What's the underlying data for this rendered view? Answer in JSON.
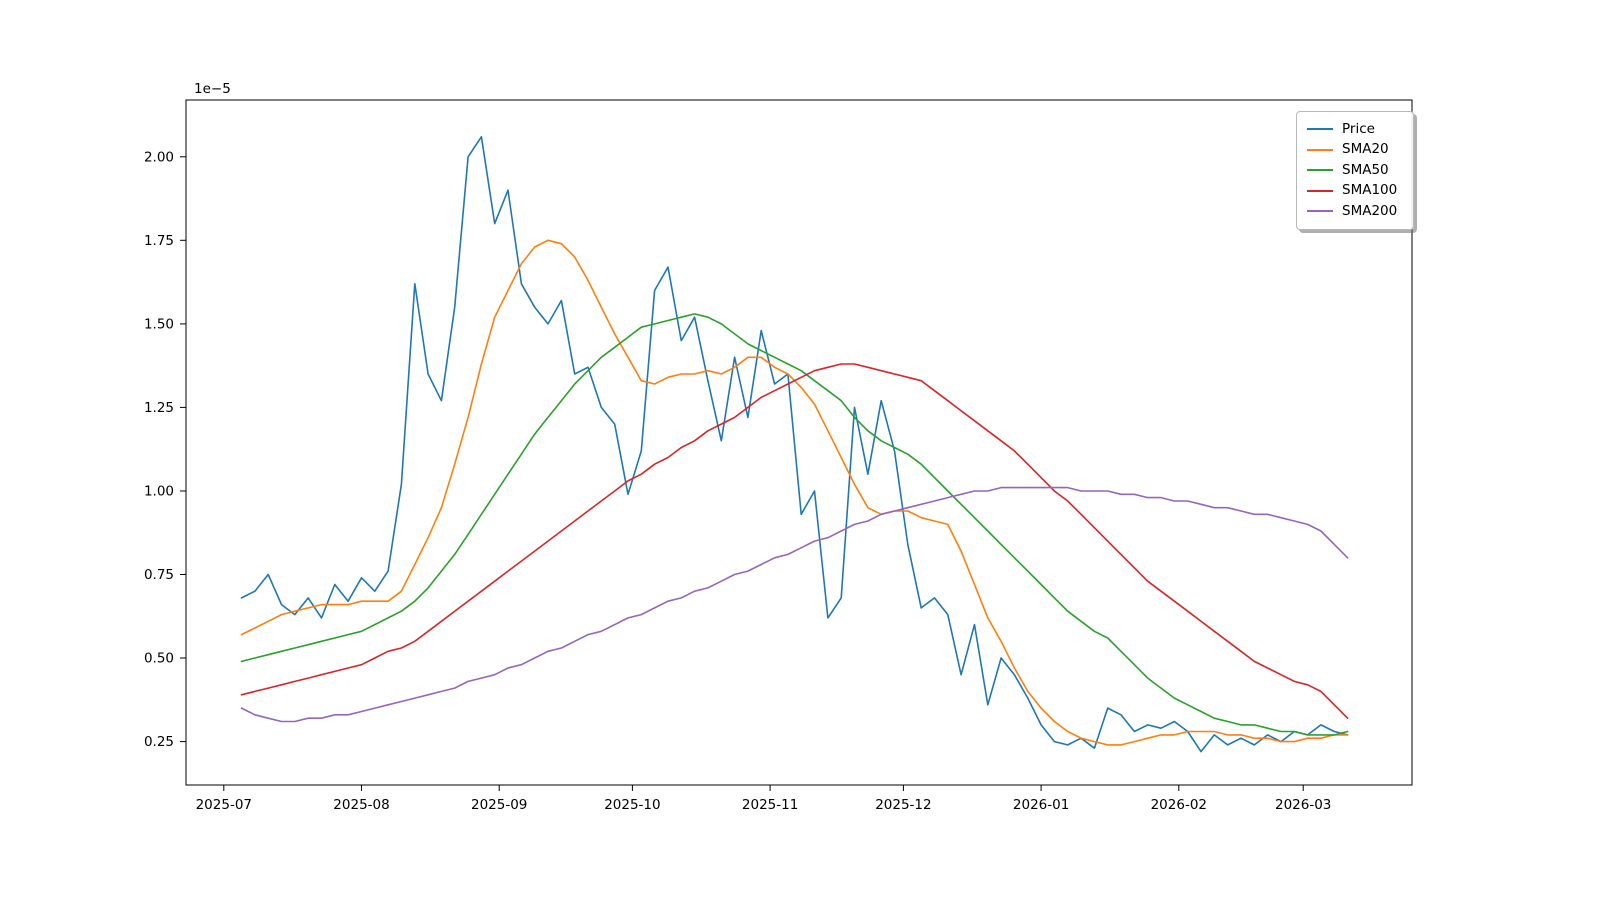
{
  "figure": {
    "background": "#ffffff"
  },
  "chart_data": {
    "type": "line",
    "title": "",
    "xlabel": "",
    "ylabel": "",
    "y_offset_label": "1e−5",
    "y_unit_multiplier": 1e-05,
    "x_unit": "days since 2025-07-01",
    "grid": false,
    "legend_position": "upper right",
    "xlim": [
      -8.5,
      267.5
    ],
    "ylim": [
      0.12,
      2.17
    ],
    "x_ticks": [
      {
        "pos": 0,
        "label": "2025-07"
      },
      {
        "pos": 31,
        "label": "2025-08"
      },
      {
        "pos": 62,
        "label": "2025-09"
      },
      {
        "pos": 92,
        "label": "2025-10"
      },
      {
        "pos": 123,
        "label": "2025-11"
      },
      {
        "pos": 153,
        "label": "2025-12"
      },
      {
        "pos": 184,
        "label": "2026-01"
      },
      {
        "pos": 215,
        "label": "2026-02"
      },
      {
        "pos": 243,
        "label": "2026-03"
      }
    ],
    "y_ticks": [
      "0.25",
      "0.50",
      "0.75",
      "1.00",
      "1.25",
      "1.50",
      "1.75",
      "2.00"
    ],
    "x": [
      4,
      7,
      10,
      13,
      16,
      19,
      22,
      25,
      28,
      31,
      34,
      37,
      40,
      43,
      46,
      49,
      52,
      55,
      58,
      61,
      64,
      67,
      70,
      73,
      76,
      79,
      82,
      85,
      88,
      91,
      94,
      97,
      100,
      103,
      106,
      109,
      112,
      115,
      118,
      121,
      124,
      127,
      130,
      133,
      136,
      139,
      142,
      145,
      148,
      151,
      154,
      157,
      160,
      163,
      166,
      169,
      172,
      175,
      178,
      181,
      184,
      187,
      190,
      193,
      196,
      199,
      202,
      205,
      208,
      211,
      214,
      217,
      220,
      223,
      226,
      229,
      232,
      235,
      238,
      241,
      244,
      247,
      250,
      253
    ],
    "series": [
      {
        "name": "Price",
        "color": "#1f77b4",
        "values": [
          0.68,
          0.7,
          0.75,
          0.66,
          0.63,
          0.68,
          0.62,
          0.72,
          0.67,
          0.74,
          0.7,
          0.76,
          1.02,
          1.62,
          1.35,
          1.27,
          1.55,
          2.0,
          2.06,
          1.8,
          1.9,
          1.62,
          1.55,
          1.5,
          1.57,
          1.35,
          1.37,
          1.25,
          1.2,
          0.99,
          1.12,
          1.6,
          1.67,
          1.45,
          1.52,
          1.33,
          1.15,
          1.4,
          1.22,
          1.48,
          1.32,
          1.35,
          0.93,
          1.0,
          0.62,
          0.68,
          1.25,
          1.05,
          1.27,
          1.12,
          0.84,
          0.65,
          0.68,
          0.63,
          0.45,
          0.6,
          0.36,
          0.5,
          0.45,
          0.38,
          0.3,
          0.25,
          0.24,
          0.26,
          0.23,
          0.35,
          0.33,
          0.28,
          0.3,
          0.29,
          0.31,
          0.28,
          0.22,
          0.27,
          0.24,
          0.26,
          0.24,
          0.27,
          0.25,
          0.28,
          0.27,
          0.3,
          0.28,
          0.27
        ]
      },
      {
        "name": "SMA20",
        "color": "#ff7f0e",
        "values": [
          0.57,
          0.59,
          0.61,
          0.63,
          0.64,
          0.65,
          0.66,
          0.66,
          0.66,
          0.67,
          0.67,
          0.67,
          0.7,
          0.78,
          0.86,
          0.95,
          1.08,
          1.22,
          1.38,
          1.52,
          1.6,
          1.68,
          1.73,
          1.75,
          1.74,
          1.7,
          1.63,
          1.55,
          1.47,
          1.4,
          1.33,
          1.32,
          1.34,
          1.35,
          1.35,
          1.36,
          1.35,
          1.37,
          1.4,
          1.4,
          1.37,
          1.35,
          1.31,
          1.26,
          1.18,
          1.1,
          1.02,
          0.95,
          0.93,
          0.94,
          0.94,
          0.92,
          0.91,
          0.9,
          0.82,
          0.72,
          0.62,
          0.55,
          0.47,
          0.4,
          0.35,
          0.31,
          0.28,
          0.26,
          0.25,
          0.24,
          0.24,
          0.25,
          0.26,
          0.27,
          0.27,
          0.28,
          0.28,
          0.28,
          0.27,
          0.27,
          0.26,
          0.26,
          0.25,
          0.25,
          0.26,
          0.26,
          0.27,
          0.27
        ]
      },
      {
        "name": "SMA50",
        "color": "#2ca02c",
        "values": [
          0.49,
          0.5,
          0.51,
          0.52,
          0.53,
          0.54,
          0.55,
          0.56,
          0.57,
          0.58,
          0.6,
          0.62,
          0.64,
          0.67,
          0.71,
          0.76,
          0.81,
          0.87,
          0.93,
          0.99,
          1.05,
          1.11,
          1.17,
          1.22,
          1.27,
          1.32,
          1.36,
          1.4,
          1.43,
          1.46,
          1.49,
          1.5,
          1.51,
          1.52,
          1.53,
          1.52,
          1.5,
          1.47,
          1.44,
          1.42,
          1.4,
          1.38,
          1.36,
          1.33,
          1.3,
          1.27,
          1.22,
          1.18,
          1.15,
          1.13,
          1.11,
          1.08,
          1.04,
          1.0,
          0.96,
          0.92,
          0.88,
          0.84,
          0.8,
          0.76,
          0.72,
          0.68,
          0.64,
          0.61,
          0.58,
          0.56,
          0.52,
          0.48,
          0.44,
          0.41,
          0.38,
          0.36,
          0.34,
          0.32,
          0.31,
          0.3,
          0.3,
          0.29,
          0.28,
          0.28,
          0.27,
          0.27,
          0.27,
          0.28
        ]
      },
      {
        "name": "SMA100",
        "color": "#d62728",
        "values": [
          0.39,
          0.4,
          0.41,
          0.42,
          0.43,
          0.44,
          0.45,
          0.46,
          0.47,
          0.48,
          0.5,
          0.52,
          0.53,
          0.55,
          0.58,
          0.61,
          0.64,
          0.67,
          0.7,
          0.73,
          0.76,
          0.79,
          0.82,
          0.85,
          0.88,
          0.91,
          0.94,
          0.97,
          1.0,
          1.03,
          1.05,
          1.08,
          1.1,
          1.13,
          1.15,
          1.18,
          1.2,
          1.22,
          1.25,
          1.28,
          1.3,
          1.32,
          1.34,
          1.36,
          1.37,
          1.38,
          1.38,
          1.37,
          1.36,
          1.35,
          1.34,
          1.33,
          1.3,
          1.27,
          1.24,
          1.21,
          1.18,
          1.15,
          1.12,
          1.08,
          1.04,
          1.0,
          0.97,
          0.93,
          0.89,
          0.85,
          0.81,
          0.77,
          0.73,
          0.7,
          0.67,
          0.64,
          0.61,
          0.58,
          0.55,
          0.52,
          0.49,
          0.47,
          0.45,
          0.43,
          0.42,
          0.4,
          0.36,
          0.32
        ]
      },
      {
        "name": "SMA200",
        "color": "#9467bd",
        "values": [
          0.35,
          0.33,
          0.32,
          0.31,
          0.31,
          0.32,
          0.32,
          0.33,
          0.33,
          0.34,
          0.35,
          0.36,
          0.37,
          0.38,
          0.39,
          0.4,
          0.41,
          0.43,
          0.44,
          0.45,
          0.47,
          0.48,
          0.5,
          0.52,
          0.53,
          0.55,
          0.57,
          0.58,
          0.6,
          0.62,
          0.63,
          0.65,
          0.67,
          0.68,
          0.7,
          0.71,
          0.73,
          0.75,
          0.76,
          0.78,
          0.8,
          0.81,
          0.83,
          0.85,
          0.86,
          0.88,
          0.9,
          0.91,
          0.93,
          0.94,
          0.95,
          0.96,
          0.97,
          0.98,
          0.99,
          1.0,
          1.0,
          1.01,
          1.01,
          1.01,
          1.01,
          1.01,
          1.01,
          1.0,
          1.0,
          1.0,
          0.99,
          0.99,
          0.98,
          0.98,
          0.97,
          0.97,
          0.96,
          0.95,
          0.95,
          0.94,
          0.93,
          0.93,
          0.92,
          0.91,
          0.9,
          0.88,
          0.84,
          0.8
        ]
      }
    ]
  }
}
